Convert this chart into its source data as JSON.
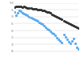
{
  "background_color": "#ffffff",
  "line1_color": "#333333",
  "line2_color": "#5aaaee",
  "line1_y": [
    96.8,
    97.4,
    97.6,
    97.2,
    97.5,
    97.0,
    97.2,
    96.8,
    96.5,
    96.3,
    96.0,
    95.8,
    95.9,
    95.5,
    95.3,
    95.0,
    95.2,
    94.7,
    94.4,
    93.9,
    93.6,
    93.1,
    92.6,
    91.9,
    91.1,
    90.6,
    89.9,
    89.3,
    88.6,
    87.9,
    87.1,
    86.3,
    85.6,
    85.1,
    84.6,
    84.1,
    83.6,
    82.9,
    82.1,
    81.6
  ],
  "line2_y": [
    93.5,
    91.0,
    93.0,
    94.8,
    94.2,
    93.0,
    92.2,
    91.8,
    91.0,
    90.0,
    89.5,
    88.8,
    88.2,
    87.5,
    86.8,
    86.0,
    85.2,
    84.5,
    83.5,
    82.5,
    81.5,
    80.5,
    79.5,
    78.5,
    77.5,
    76.5,
    75.0,
    73.8,
    72.5,
    71.5,
    77.0,
    75.5,
    73.5,
    72.0,
    70.5,
    72.5,
    74.0,
    71.0,
    68.0,
    67.0
  ],
  "ylim": [
    63,
    100
  ],
  "xlim": [
    0,
    39
  ]
}
